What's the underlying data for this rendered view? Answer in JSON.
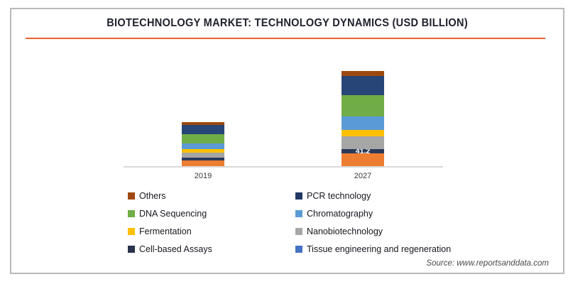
{
  "title": "BIOTECHNOLOGY MARKET: TECHNOLOGY DYNAMICS (USD BILLION)",
  "source_note": "Source: www.reportsanddata.com",
  "colors": {
    "title_text": "#20222e",
    "title_underline": "#e8622d",
    "frame_border": "#b9b9b9",
    "axis_line": "#d9d9d9",
    "data_label_text": "#ffffff"
  },
  "chart_data": {
    "type": "bar",
    "stacked": true,
    "title": "BIOTECHNOLOGY MARKET: TECHNOLOGY DYNAMICS (USD BILLION)",
    "xlabel": "",
    "ylabel": "USD Billion",
    "axis_visible": false,
    "grid": false,
    "legend_position": "bottom",
    "categories": [
      "2019",
      "2027"
    ],
    "series": [
      {
        "name": "Tissue engineering and regeneration",
        "color": "#ed7d31",
        "values": [
          57,
          124
        ]
      },
      {
        "name": "Cell-based Assays",
        "color": "#2b3a5a",
        "values": [
          23,
          41.2
        ]
      },
      {
        "name": "Nanobiotechnology",
        "color": "#a6a6a6",
        "values": [
          48,
          126
        ]
      },
      {
        "name": "Fermentation",
        "color": "#ffc000",
        "values": [
          38,
          58
        ]
      },
      {
        "name": "Chromatography",
        "color": "#5b9bd5",
        "values": [
          55,
          130
        ]
      },
      {
        "name": "DNA Sequencing",
        "color": "#70ad47",
        "values": [
          89,
          206
        ]
      },
      {
        "name": "PCR technology",
        "color": "#274577",
        "values": [
          89,
          188
        ]
      },
      {
        "name": "Others",
        "color": "#9e490f",
        "values": [
          25,
          48
        ]
      }
    ],
    "data_labels": [
      {
        "series": "Cell-based Assays",
        "category": "2027",
        "text": "41.2"
      }
    ]
  },
  "legend": {
    "items": [
      {
        "label": "Others",
        "color": "#9e490f"
      },
      {
        "label": "PCR technology",
        "color": "#203864"
      },
      {
        "label": "DNA Sequencing",
        "color": "#70ad47"
      },
      {
        "label": "Chromatography",
        "color": "#5b9bd5"
      },
      {
        "label": "Fermentation",
        "color": "#ffc000"
      },
      {
        "label": "Nanobiotechnology",
        "color": "#a6a6a6"
      },
      {
        "label": "Cell-based Assays",
        "color": "#29324e"
      },
      {
        "label": "Tissue engineering and regeneration",
        "color": "#4472c4"
      }
    ]
  }
}
